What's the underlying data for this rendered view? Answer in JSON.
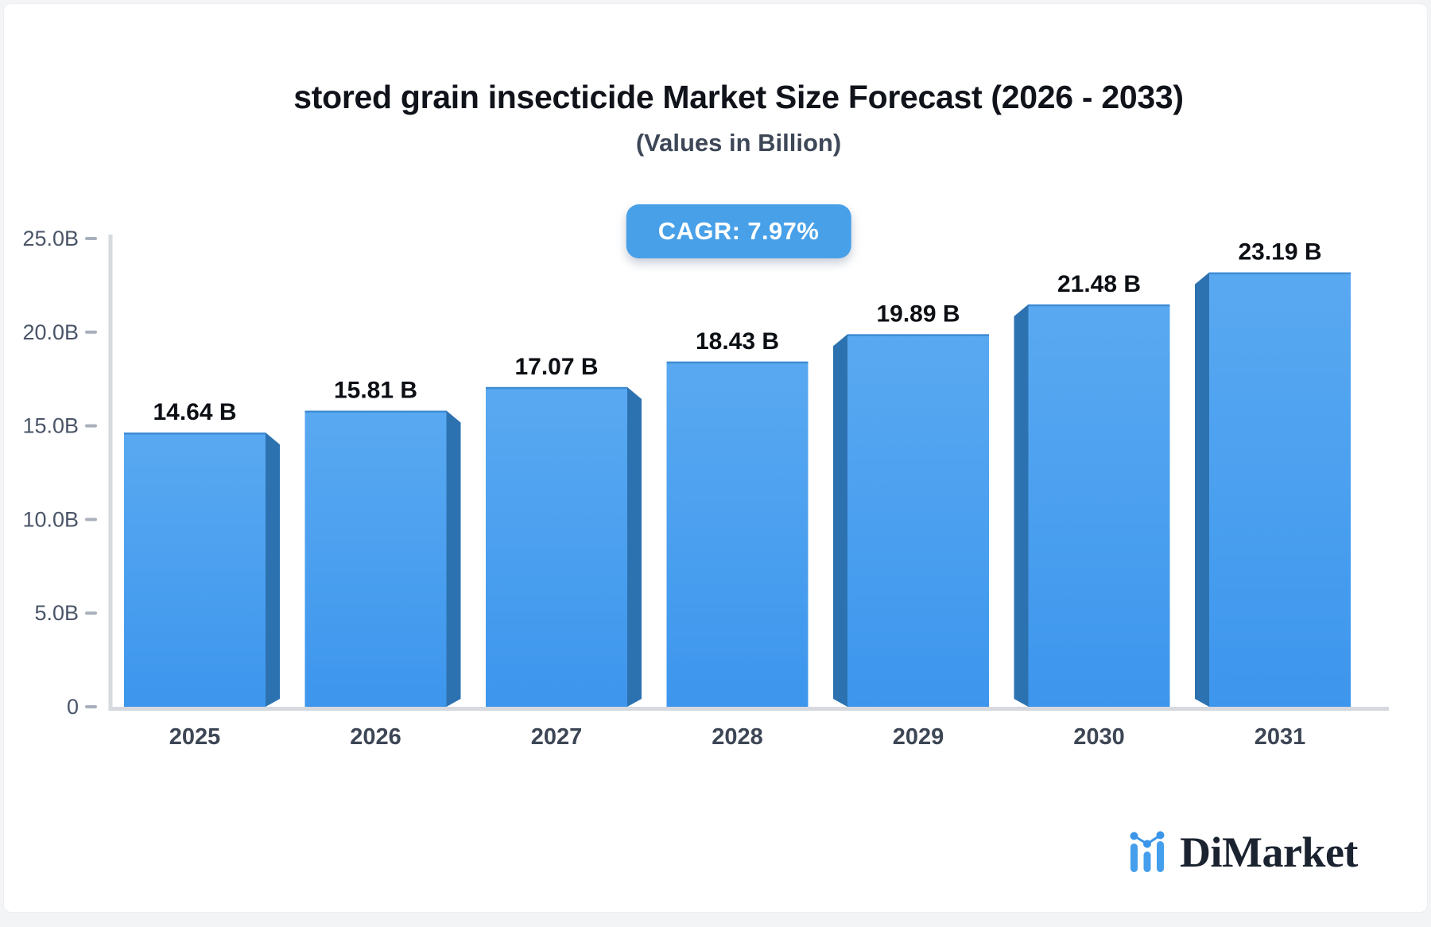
{
  "page": {
    "background_color": "#f3f4f6",
    "card_background_color": "#ffffff"
  },
  "header": {
    "title": "stored grain insecticide Market Size Forecast (2026 - 2033)",
    "subtitle": "(Values in Billion)",
    "cagr_badge_label": "CAGR: 7.97%",
    "cagr_badge_color": "#48a0e8"
  },
  "chart_data": {
    "type": "bar",
    "title": "stored grain insecticide Market Size Forecast (2026 - 2033)",
    "subtitle": "(Values in Billion)",
    "cagr_percent": "7.97%",
    "categories": [
      "2025",
      "2026",
      "2027",
      "2028",
      "2029",
      "2030",
      "2031"
    ],
    "values": [
      14.64,
      15.81,
      17.07,
      18.43,
      19.89,
      21.48,
      23.19
    ],
    "value_labels": [
      "14.64 B",
      "15.81 B",
      "17.07 B",
      "18.43 B",
      "19.89 B",
      "21.48 B",
      "23.19 B"
    ],
    "unit": "Billion",
    "ylim": [
      0,
      25
    ],
    "ytick_values": [
      25,
      20,
      15,
      10,
      5,
      0
    ],
    "ytick_labels": [
      "25.0B",
      "20.0B",
      "15.0B",
      "10.0B",
      "5.0B",
      "0"
    ],
    "grid": false,
    "legend": false,
    "colors": {
      "bar_face_top": "#59a9f1",
      "bar_face_bottom": "#3d96ed",
      "bar_side": "#2d72b0",
      "bar_top_edge": "#3f8cd4",
      "axis_line": "#d6d9de",
      "tick_mark": "#a9b0bb",
      "ytick_label": "#4a5568",
      "xtick_label": "#3d4655",
      "value_label": "#0c0f14"
    }
  },
  "footer": {
    "logo_text": "DiMarket",
    "logo_icon": "bar-chart-with-dots-logo-icon",
    "logo_icon_color": "#459fec",
    "logo_dot_color": "#3b95e8",
    "logo_text_color": "#1b2330"
  }
}
